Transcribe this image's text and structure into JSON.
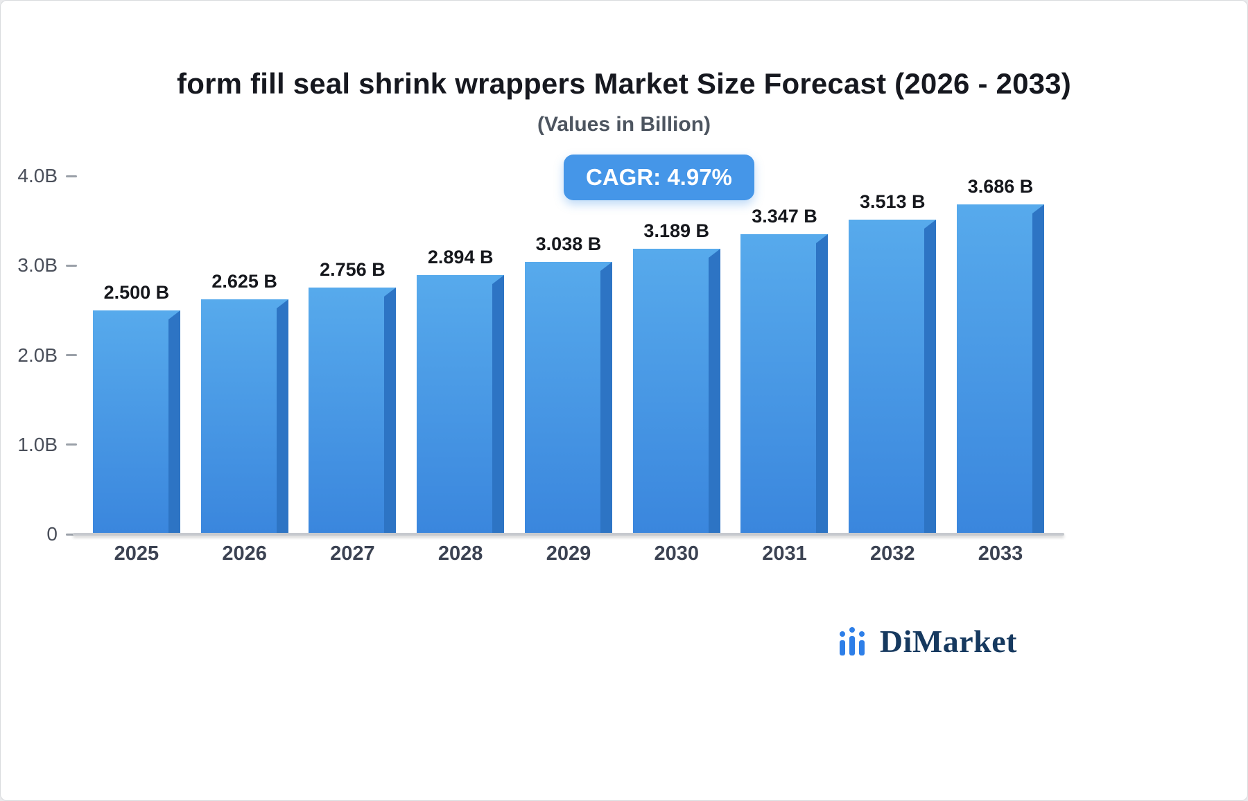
{
  "header": {
    "title": "form fill seal shrink wrappers Market Size Forecast (2026 - 2033)",
    "subtitle": "(Values in Billion)"
  },
  "badge": {
    "label": "CAGR: 4.97%"
  },
  "logo": {
    "text": "DiMarket"
  },
  "colors": {
    "bar_top": "#57aaec",
    "bar_bottom": "#3a86dd",
    "bar_side": "#2d74c4",
    "badge_bg": "#4596e8",
    "logo_blue": "#2e7fe8",
    "logo_navy": "#16395f"
  },
  "chart_data": {
    "type": "bar",
    "title": "form fill seal shrink wrappers Market Size Forecast (2026 - 2033)",
    "subtitle": "(Values in Billion)",
    "categories": [
      "2025",
      "2026",
      "2027",
      "2028",
      "2029",
      "2030",
      "2031",
      "2032",
      "2033"
    ],
    "values": [
      2.5,
      2.625,
      2.756,
      2.894,
      3.038,
      3.189,
      3.347,
      3.513,
      3.686
    ],
    "value_labels": [
      "2.500 B",
      "2.625 B",
      "2.756 B",
      "2.894 B",
      "3.038 B",
      "3.189 B",
      "3.347 B",
      "3.513 B",
      "3.686 B"
    ],
    "cagr": "4.97%",
    "xlabel": "",
    "ylabel": "",
    "ylim": [
      0,
      4.0
    ],
    "y_ticks": [
      {
        "value": 0,
        "label": "0"
      },
      {
        "value": 1.0,
        "label": "1.0B"
      },
      {
        "value": 2.0,
        "label": "2.0B"
      },
      {
        "value": 3.0,
        "label": "3.0B"
      },
      {
        "value": 4.0,
        "label": "4.0B"
      }
    ],
    "grid": false,
    "legend": false,
    "bar_color": "#459ae6"
  }
}
